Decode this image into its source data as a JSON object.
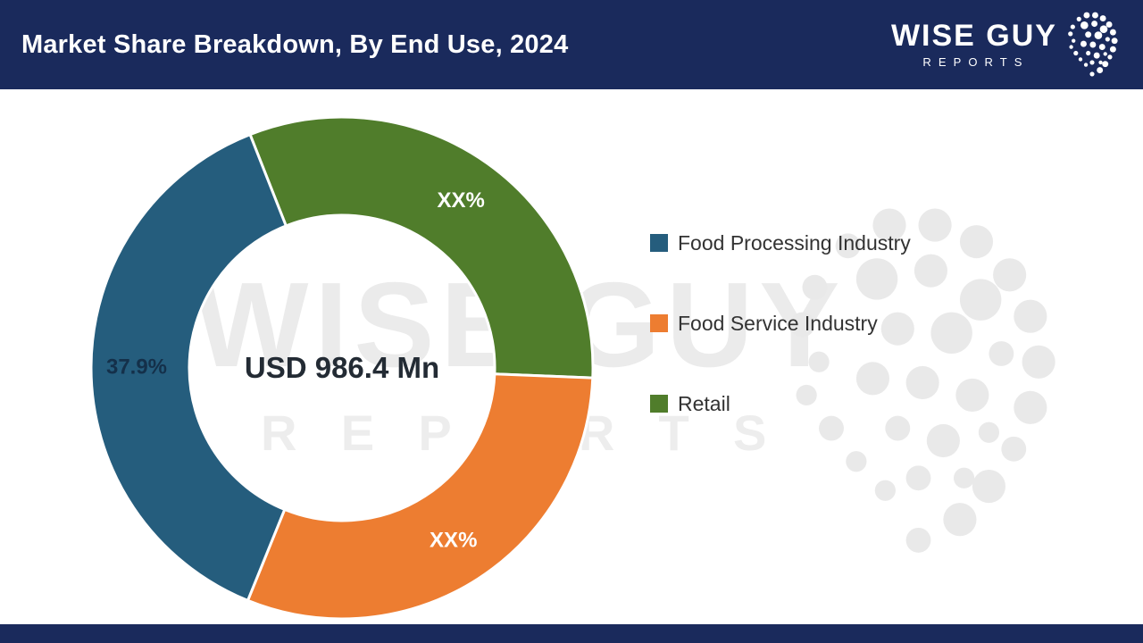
{
  "header": {
    "title": "Market Share Breakdown, By End Use, 2024",
    "bg_color": "#1a2a5c",
    "logo": {
      "line1": "WISE GUY",
      "line2": "REPORTS"
    }
  },
  "watermark": {
    "line1": "WISE GUY",
    "line2": "REPORTS"
  },
  "chart_data": {
    "type": "pie",
    "subtype": "donut",
    "title": "Market Share Breakdown, By End Use, 2024",
    "center_label": "USD 986.4 Mn",
    "start_angle_deg": -21.5,
    "inner_radius_ratio": 0.61,
    "legend_position": "right",
    "segments": [
      {
        "name": "Retail",
        "value": 31.6,
        "display_label": "XX%",
        "color": "#507d2b",
        "label_color": "#ffffff"
      },
      {
        "name": "Food Service Industry",
        "value": 30.5,
        "display_label": "XX%",
        "color": "#ed7d31",
        "label_color": "#ffffff"
      },
      {
        "name": "Food Processing Industry",
        "value": 37.9,
        "display_label": "37.9%",
        "color": "#255d7d",
        "label_color": "#14304a"
      }
    ]
  },
  "legend": {
    "items": [
      {
        "label": "Food Processing Industry",
        "color": "#255d7d"
      },
      {
        "label": "Food Service Industry",
        "color": "#ed7d31"
      },
      {
        "label": "Retail",
        "color": "#507d2b"
      }
    ]
  }
}
